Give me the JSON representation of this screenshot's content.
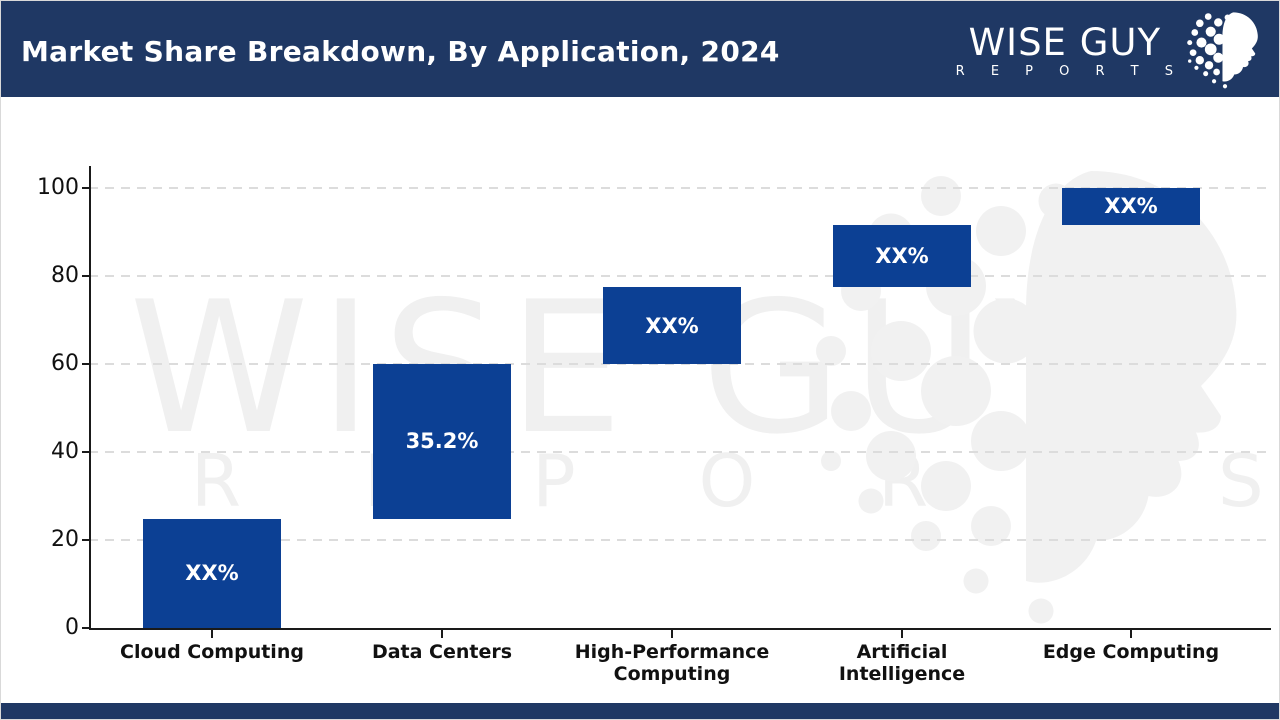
{
  "header": {
    "title": "Market Share Breakdown, By Application, 2024",
    "logo_line1": "WISE GUY",
    "logo_line2": "R E P O R T S"
  },
  "watermark": {
    "line1": "WISE GUY",
    "line2": "R E P O R T S"
  },
  "colors": {
    "header_bg": "#1f3864",
    "footer_bg": "#1f3864",
    "bar_fill": "#0c4094",
    "grid_line": "#dcdcdc",
    "axis_line": "#1a1a1a",
    "tick_text": "#111111",
    "bar_label_text": "#ffffff",
    "watermark": "#f0f0f0"
  },
  "chart_data": {
    "type": "bar",
    "variant": "floating-segment (waterfall-style) bars",
    "title": "Market Share Breakdown, By Application, 2024",
    "xlabel": "",
    "ylabel": "",
    "ylim": [
      0,
      100
    ],
    "yticks": [
      0,
      20,
      40,
      60,
      80,
      100
    ],
    "grid": "horizontal dashed",
    "legend": "none",
    "categories": [
      "Cloud Computing",
      "Data Centers",
      "High-Performance Computing",
      "Artificial Intelligence",
      "Edge Computing"
    ],
    "category_label_lines": [
      [
        "Cloud Computing"
      ],
      [
        "Data Centers"
      ],
      [
        "High-Performance",
        "Computing"
      ],
      [
        "Artificial",
        "Intelligence"
      ],
      [
        "Edge Computing"
      ]
    ],
    "segments": [
      {
        "category": "Cloud Computing",
        "start": 0,
        "end": 24.8,
        "label": "XX%"
      },
      {
        "category": "Data Centers",
        "start": 24.8,
        "end": 60.0,
        "label": "35.2%"
      },
      {
        "category": "High-Performance Computing",
        "start": 60.0,
        "end": 77.5,
        "label": "XX%"
      },
      {
        "category": "Artificial Intelligence",
        "start": 77.5,
        "end": 91.6,
        "label": "XX%"
      },
      {
        "category": "Edge Computing",
        "start": 91.6,
        "end": 100.0,
        "label": "XX%"
      }
    ]
  }
}
